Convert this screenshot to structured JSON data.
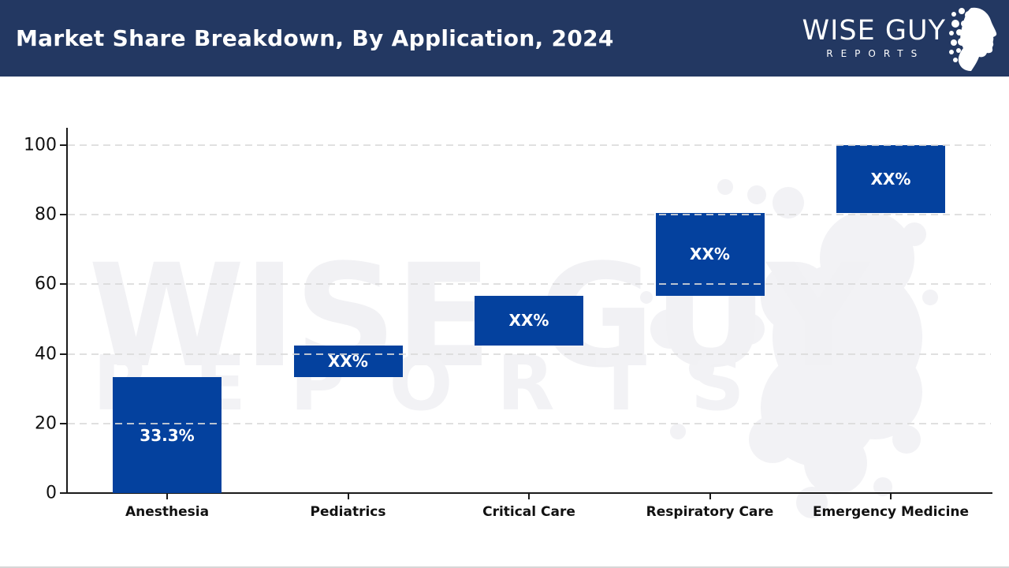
{
  "header": {
    "title": "Market Share Breakdown, By Application, 2024",
    "bg_color": "#233862",
    "logo": {
      "line1": "WISE GUY",
      "line2": "REPORTS",
      "icon": "dotted-head-profile"
    }
  },
  "watermark": {
    "line1": "WISE GUY",
    "line2": "REPORTS",
    "color": "#f1f1f4"
  },
  "chart_data": {
    "type": "bar",
    "subtype": "waterfall",
    "title": "Market Share Breakdown, By Application, 2024",
    "categories": [
      "Anesthesia",
      "Pediatrics",
      "Critical Care",
      "Respiratory Care",
      "Emergency Medicine"
    ],
    "series": [
      {
        "name": "Market Share",
        "bar_start": [
          0,
          33.3,
          42.5,
          56.8,
          80.5
        ],
        "bar_end": [
          33.3,
          42.5,
          56.8,
          80.5,
          100
        ],
        "labels": [
          "33.3%",
          "XX%",
          "XX%",
          "XX%",
          "XX%"
        ]
      }
    ],
    "xlabel": "",
    "ylabel": "",
    "ylim": [
      0,
      105
    ],
    "yticks": [
      0,
      20,
      40,
      60,
      80,
      100
    ],
    "grid": "horizontal-dashed",
    "legend": null,
    "bar_color": "#04419e",
    "bar_label_color": "#ffffff",
    "axis_color": "#1a1a1a",
    "grid_color": "#dadada"
  }
}
